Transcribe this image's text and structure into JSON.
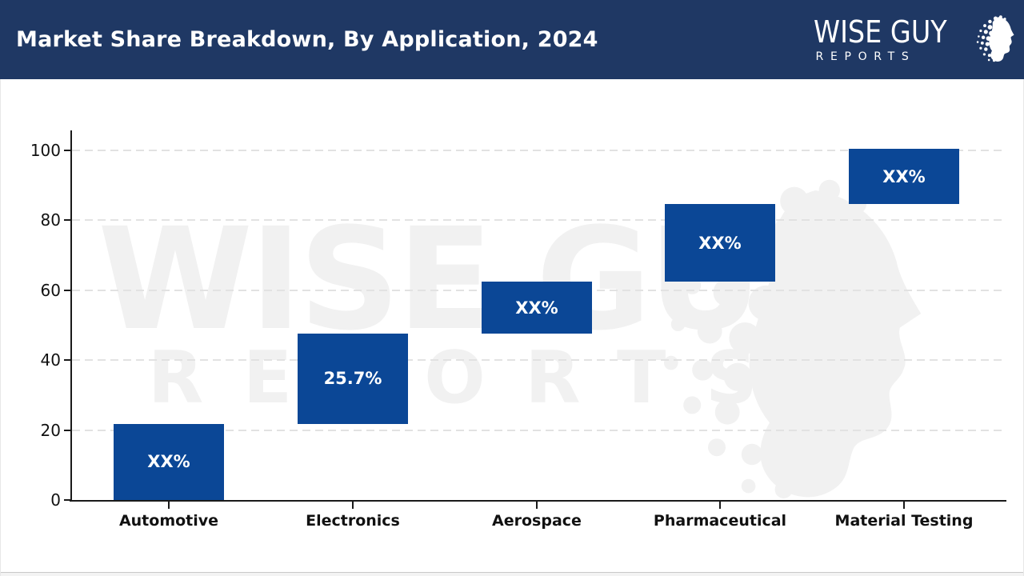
{
  "header": {
    "title": "Market Share Breakdown, By Application, 2024",
    "logo_brand": "WISE GUY",
    "logo_sub": "REPORTS"
  },
  "watermark": {
    "line1": "WISE GUY",
    "line2": "REPORTS"
  },
  "colors": {
    "header_background": "#1f3864",
    "header_text": "#ffffff",
    "bar_fill": "#0b4796",
    "bar_label_text": "#ffffff",
    "gridline": "#e2e2e2",
    "axis": "#1a1a1a",
    "watermark": "#f1f1f1"
  },
  "chart_data": {
    "type": "bar",
    "subtype": "floating-waterfall",
    "title": "Market Share Breakdown, By Application, 2024",
    "xlabel": "",
    "ylabel": "",
    "categories": [
      "Automotive",
      "Electronics",
      "Aerospace",
      "Pharmaceutical",
      "Material Testing"
    ],
    "segments": [
      {
        "category": "Automotive",
        "start": 0,
        "end": 21.8,
        "label": "XX%"
      },
      {
        "category": "Electronics",
        "start": 21.8,
        "end": 47.5,
        "label": "25.7%"
      },
      {
        "category": "Aerospace",
        "start": 47.5,
        "end": 62.4,
        "label": "XX%"
      },
      {
        "category": "Pharmaceutical",
        "start": 62.4,
        "end": 84.5,
        "label": "XX%"
      },
      {
        "category": "Material Testing",
        "start": 84.5,
        "end": 100.3,
        "label": "XX%"
      }
    ],
    "y_axis": {
      "ticks": [
        0,
        20,
        40,
        60,
        80,
        100
      ],
      "range": [
        0,
        105
      ]
    },
    "grid": "horizontal dashed lines at each y tick, behind bars",
    "legend": "none"
  }
}
